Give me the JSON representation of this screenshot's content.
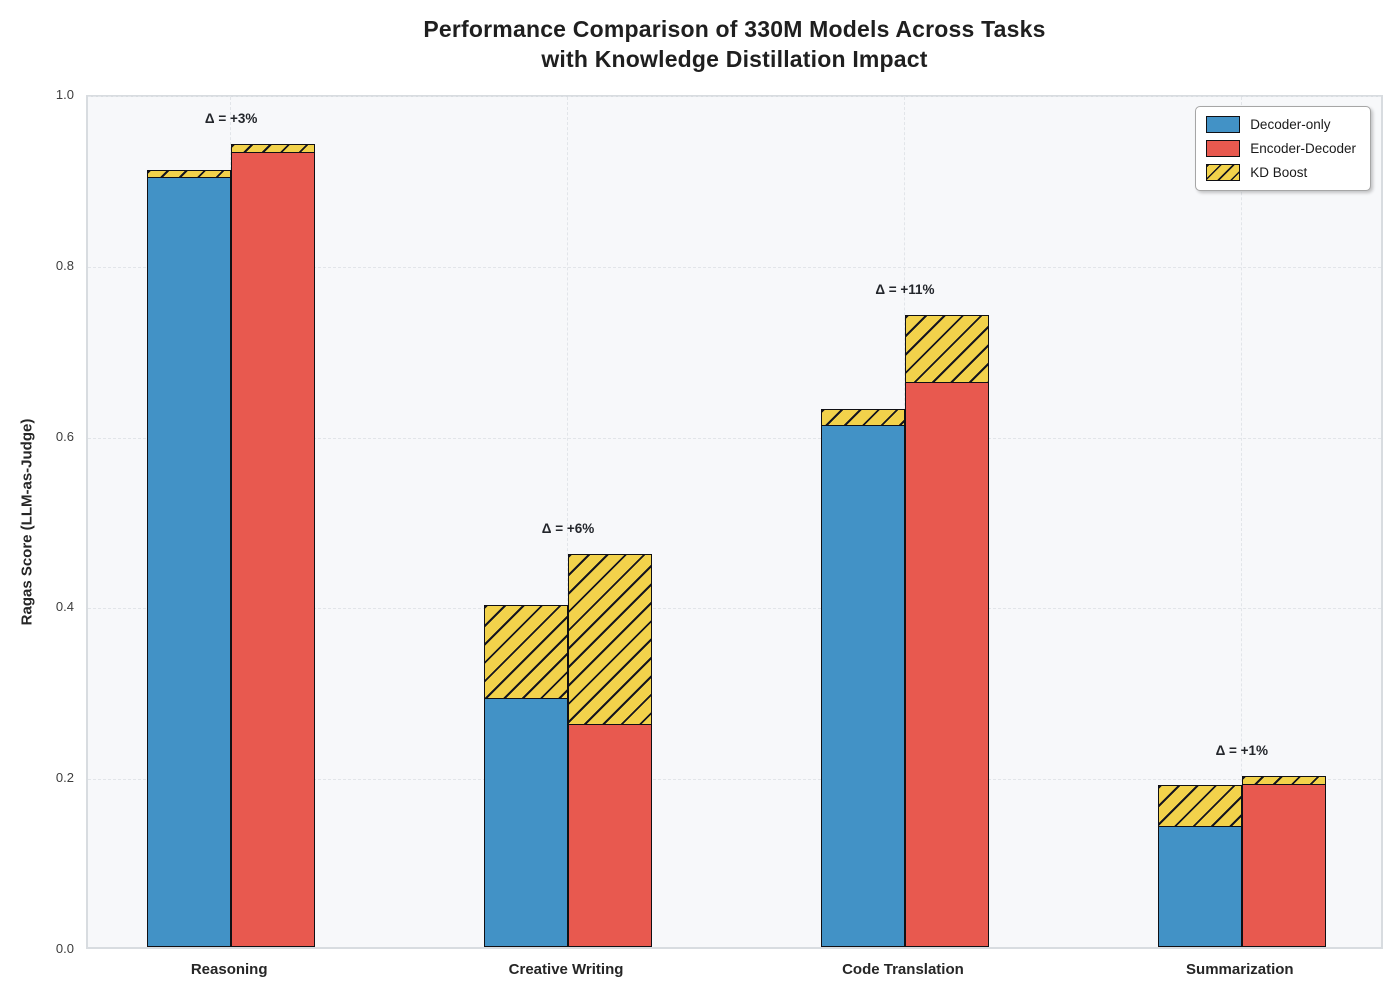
{
  "chart_data": {
    "type": "bar",
    "title": "Performance Comparison of 330M Models Across Tasks\nwith Knowledge Distillation Impact",
    "title_lines": [
      "Performance Comparison of 330M Models Across Tasks",
      "with Knowledge Distillation Impact"
    ],
    "ylabel": "Ragas Score (LLM-as-Judge)",
    "xlabel": "",
    "ylim": [
      0.0,
      1.0
    ],
    "yticks": [
      0.0,
      0.2,
      0.4,
      0.6,
      0.8,
      1.0
    ],
    "grid": true,
    "legend_position": "upper right",
    "categories": [
      "Reasoning",
      "Creative Writing",
      "Code Translation",
      "Summarization"
    ],
    "series": [
      {
        "name": "Decoder-only",
        "color": "#4292c6",
        "base_values": [
          0.9,
          0.29,
          0.61,
          0.14
        ],
        "kd_values": [
          0.91,
          0.4,
          0.63,
          0.19
        ]
      },
      {
        "name": "Encoder-Decoder",
        "color": "#e8594f",
        "base_values": [
          0.93,
          0.26,
          0.66,
          0.19
        ],
        "kd_values": [
          0.94,
          0.46,
          0.74,
          0.2
        ]
      }
    ],
    "kd_boost": {
      "name": "KD Boost",
      "color": "#f2d24b",
      "hatch": "/",
      "hatch_color": "#15151f"
    },
    "annotations": [
      {
        "category": "Reasoning",
        "label": "Δ = +3%"
      },
      {
        "category": "Creative Writing",
        "label": "Δ = +6%"
      },
      {
        "category": "Code Translation",
        "label": "Δ = +11%"
      },
      {
        "category": "Summarization",
        "label": "Δ = +1%"
      }
    ],
    "legend_entries": [
      "Decoder-only",
      "Encoder-Decoder",
      "KD Boost"
    ],
    "colors": {
      "edge": "#101014",
      "plot_background": "#f7f8fa",
      "gridline": "#e2e5e9",
      "spine": "#d8dce0"
    }
  }
}
